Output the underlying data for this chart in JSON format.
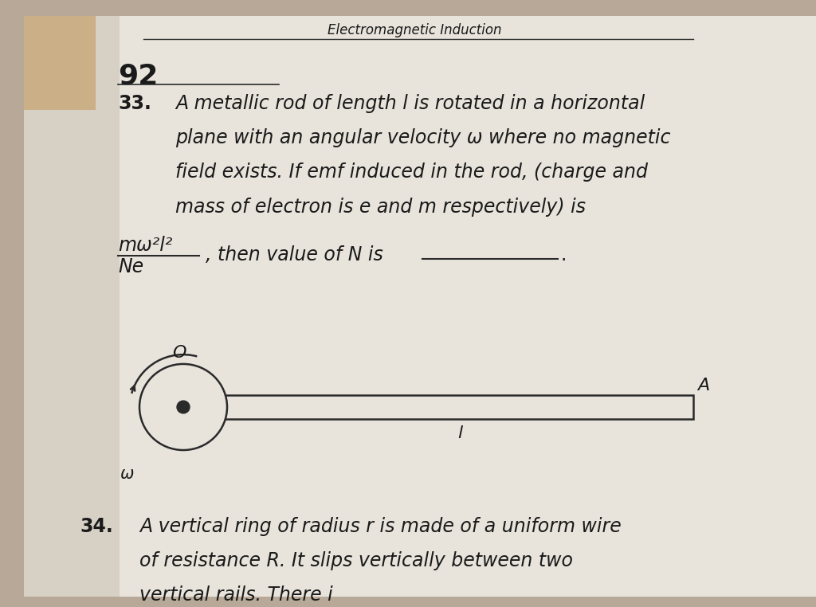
{
  "bg_color": "#b8a898",
  "page_color": "#e8e4dc",
  "text_color": "#1a1a1a",
  "line_color": "#2a2a2a",
  "title_header": "Electromagnetic Induction",
  "chapter_num": "92",
  "q33_num": "33.",
  "q33_line1": "A metallic rod of length l is rotated in a horizontal",
  "q33_line2": "plane with an angular velocity ω where no magnetic",
  "q33_line3": "field exists. If emf induced in the rod, (charge and",
  "q33_line4": "mass of electron is e and m respectively) is",
  "formula_num": "mω²l²",
  "formula_den": "Ne",
  "formula_suffix": ", then value of N is",
  "blank_line": "___________.",
  "label_O": "O",
  "label_A": "A",
  "label_l": "l",
  "label_omega": "ω",
  "q34_num": "34.",
  "q34_line1": "A vertical ring of radius r is made of a uniform wirе",
  "q34_line2": "of resistance R. It slips vertically between twο",
  "q34_line3": "vertical rails. There i"
}
